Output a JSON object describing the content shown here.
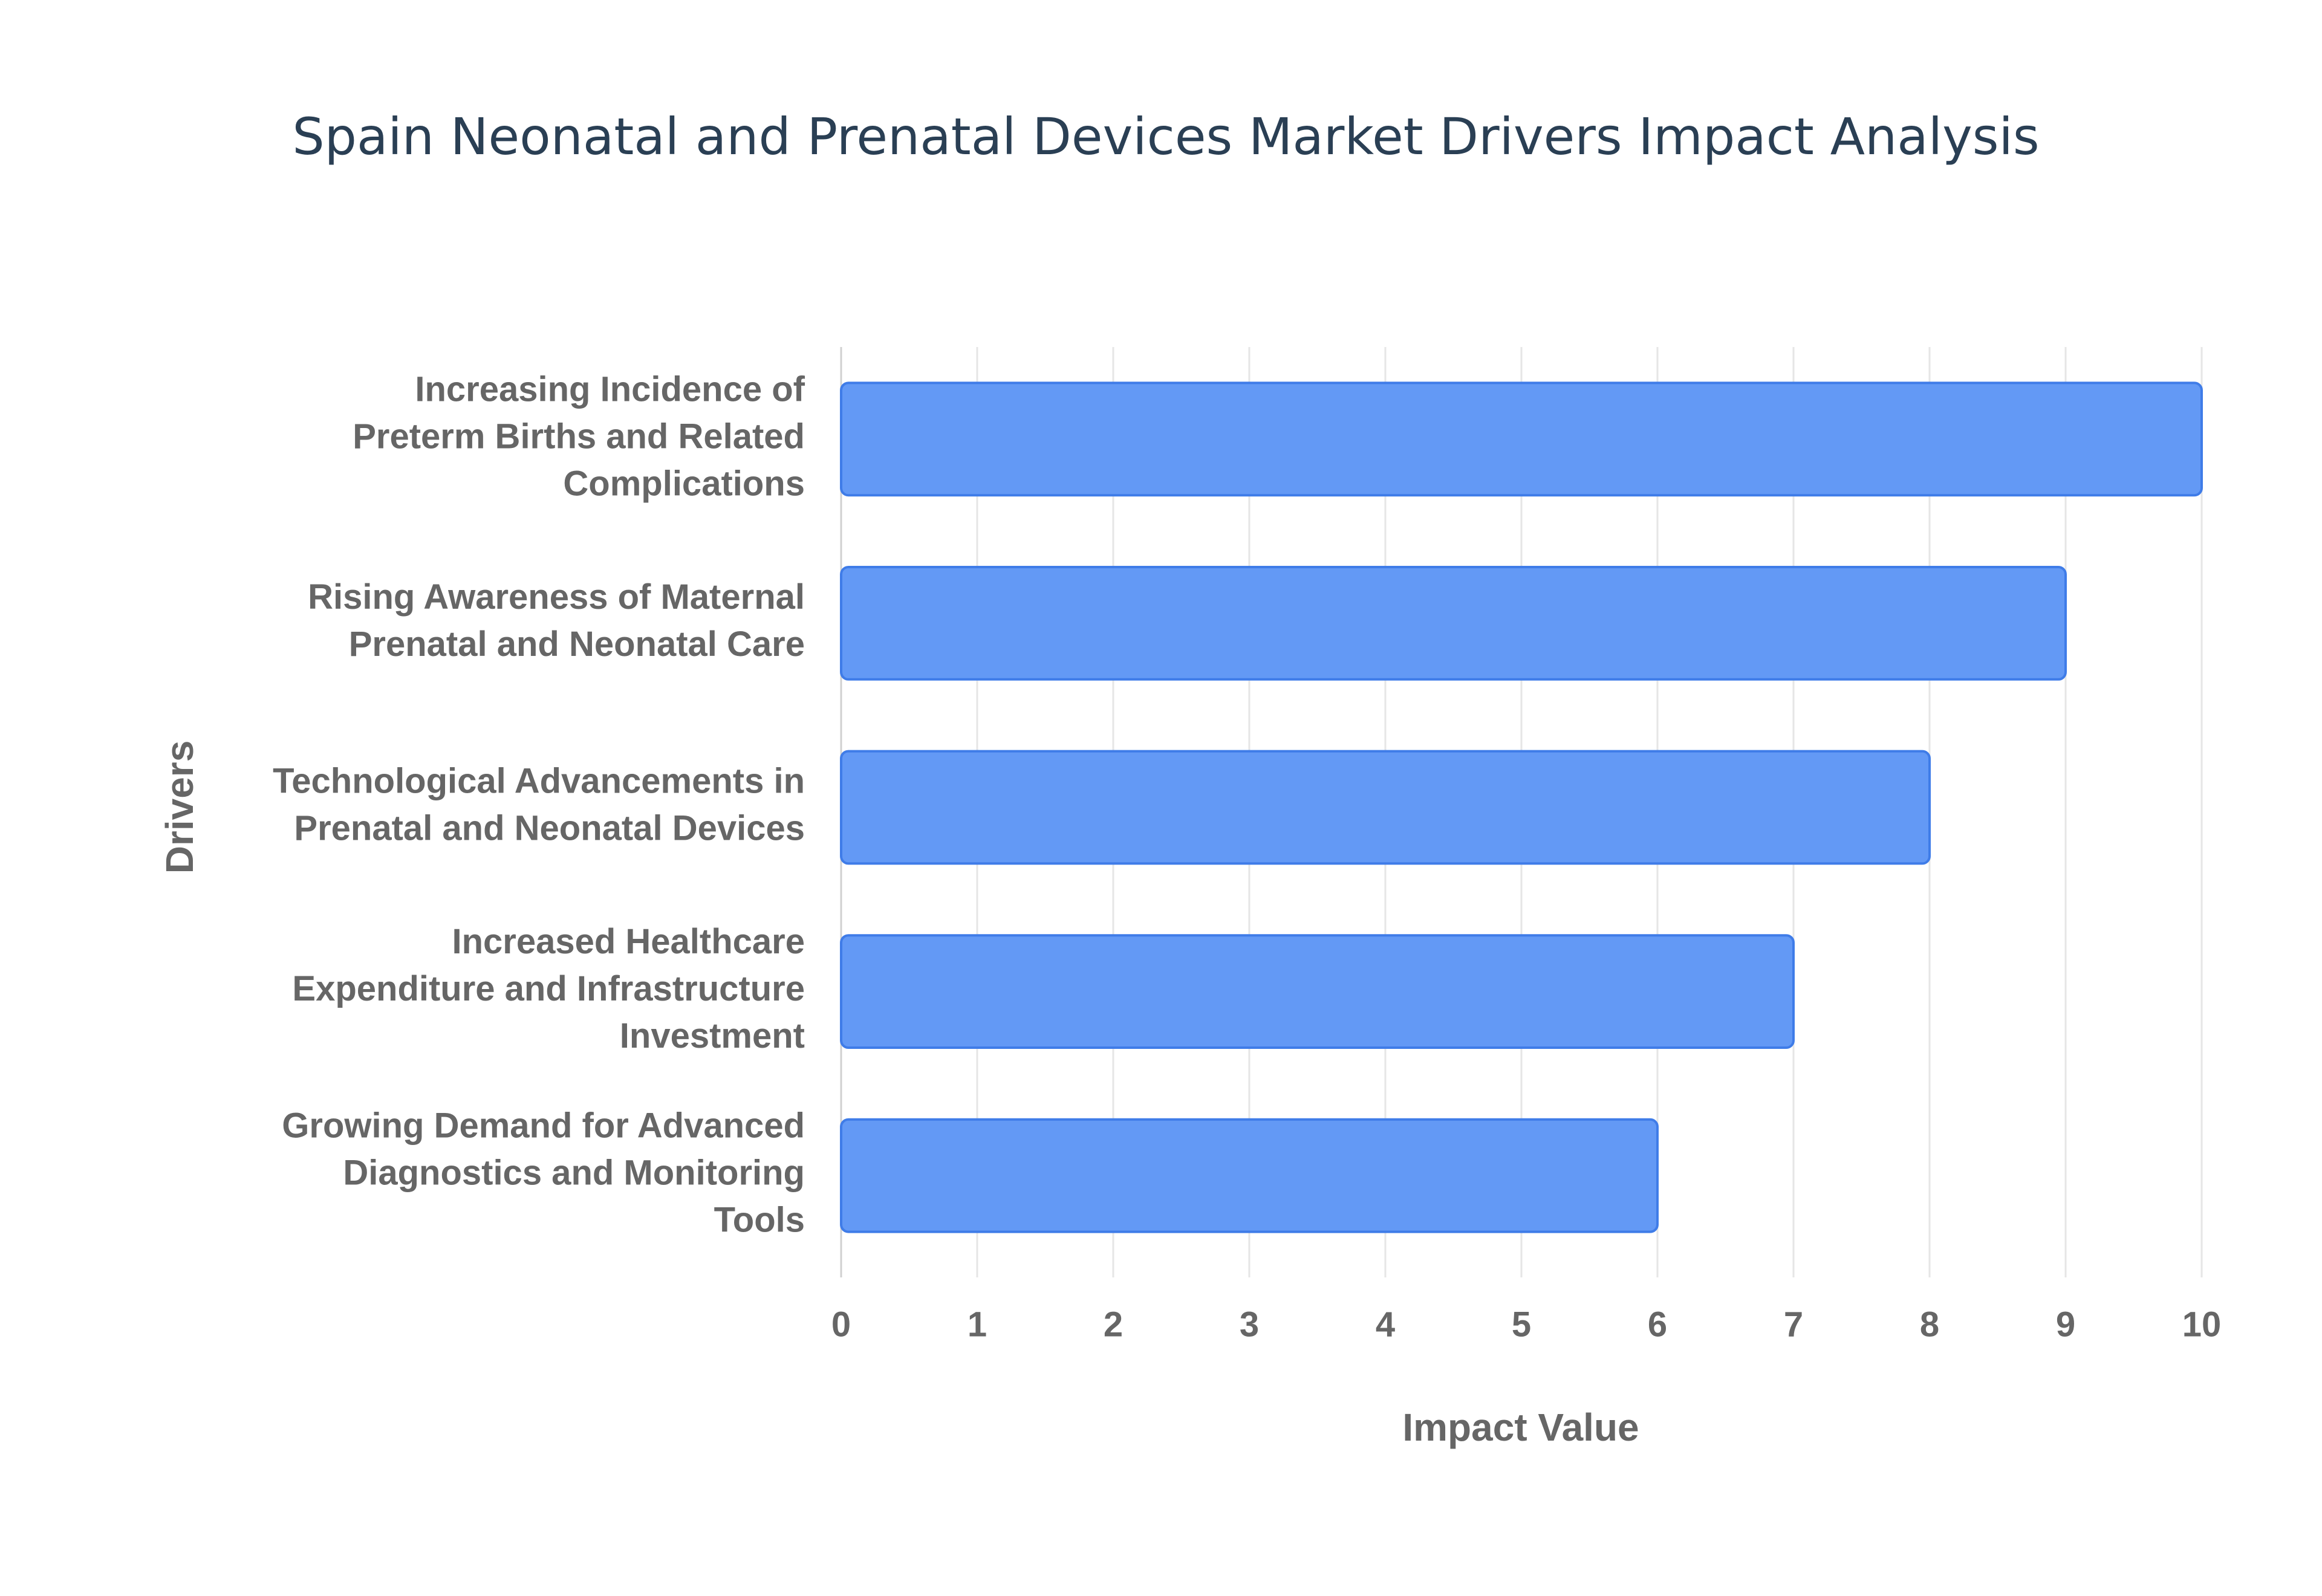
{
  "chart_data": {
    "type": "bar",
    "orientation": "horizontal",
    "title": "Spain Neonatal and Prenatal Devices Market Drivers Impact Analysis",
    "x_label": "Impact Value",
    "y_label": "Drivers",
    "categories": [
      "Increasing Incidence of\nPreterm Births and Related\nComplications",
      "Rising Awareness of Maternal\nPrenatal and Neonatal Care",
      "Technological Advancements in\nPrenatal and Neonatal Devices",
      "Increased Healthcare\nExpenditure and Infrastructure\nInvestment",
      "Growing Demand for Advanced\nDiagnostics and Monitoring\nTools"
    ],
    "values": [
      10,
      9,
      8,
      7,
      6
    ],
    "color": "#6399f5",
    "xlim": [
      0,
      10
    ],
    "xticks": [
      0,
      1,
      2,
      3,
      4,
      5,
      6,
      7,
      8,
      9,
      10
    ],
    "grid": true
  }
}
